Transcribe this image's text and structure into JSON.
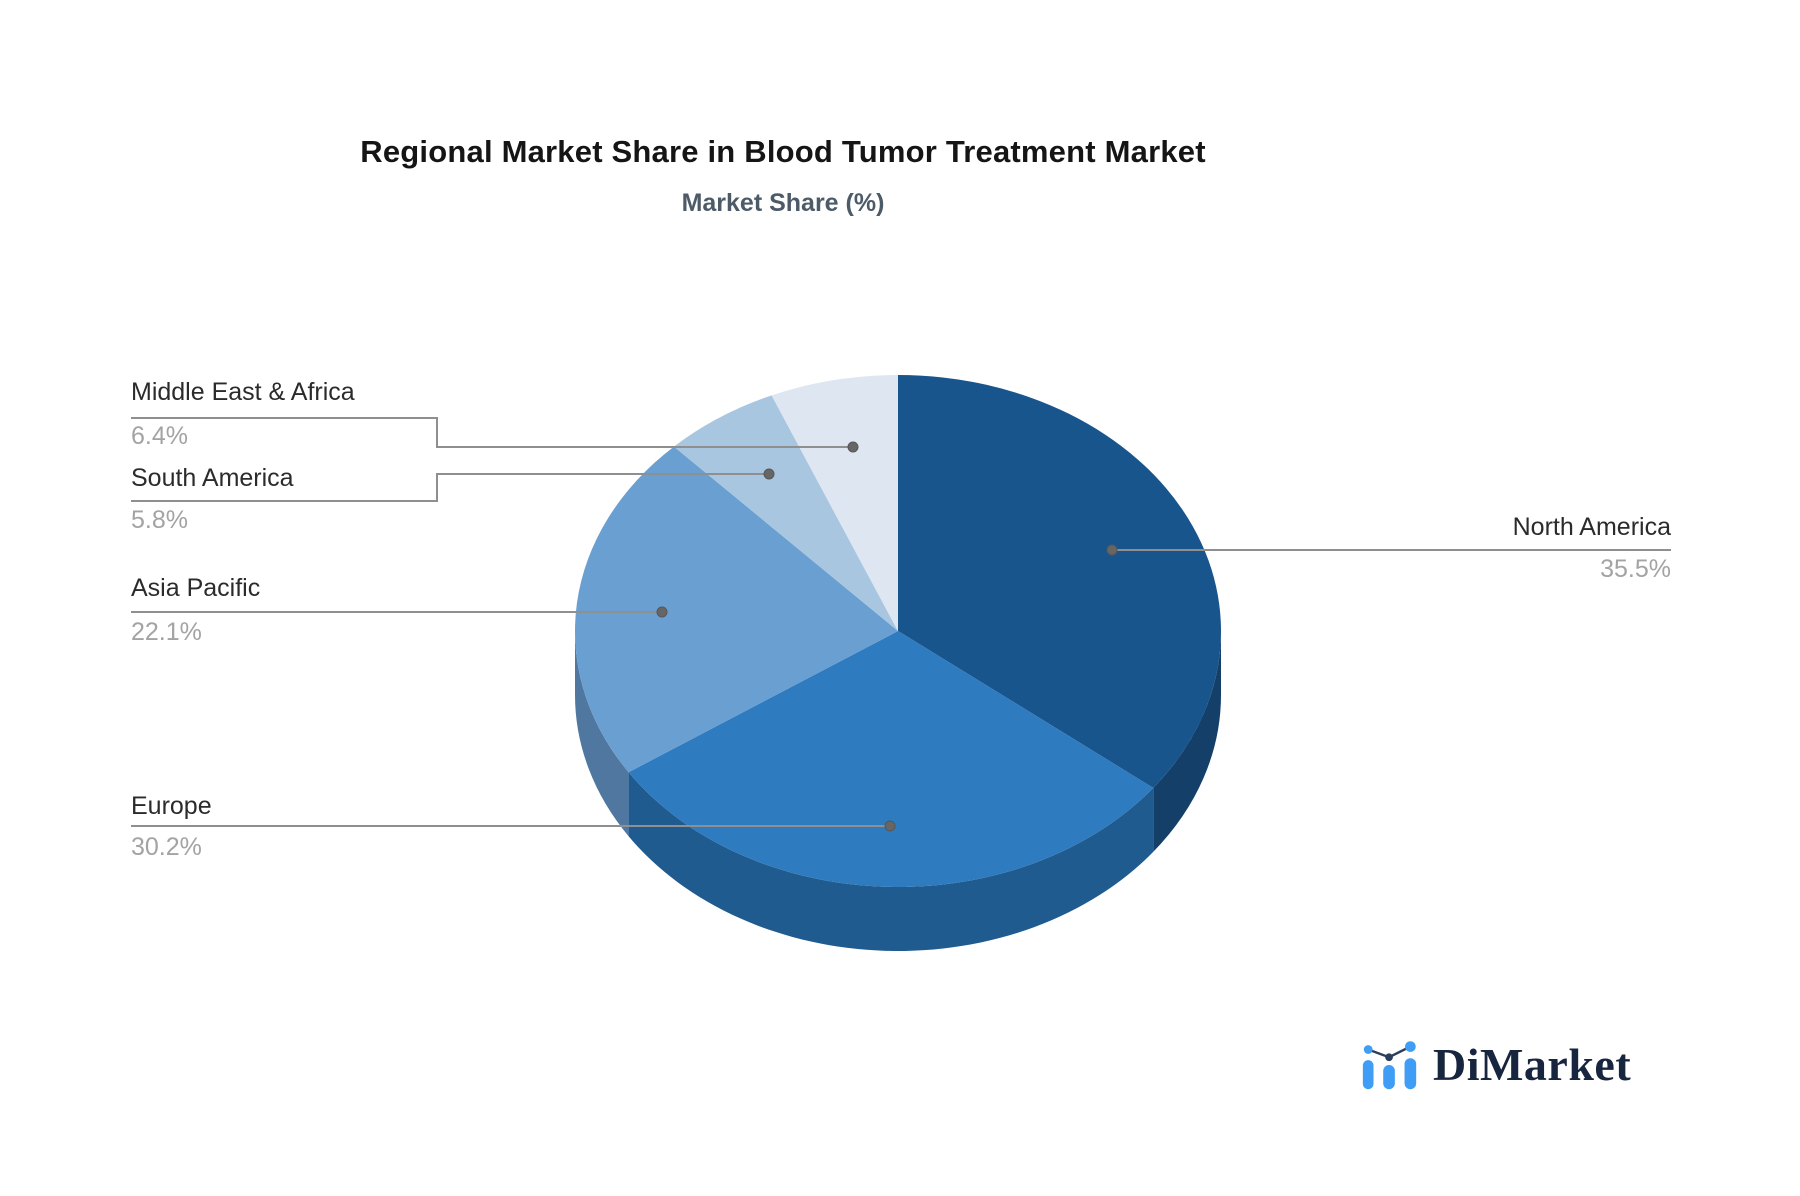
{
  "page": {
    "background": "#ffffff"
  },
  "header": {
    "title": "Regional Market Share in Blood Tumor Treatment Market",
    "subtitle": "Market Share (%)"
  },
  "brand": {
    "name": "DiMarket",
    "icon": "bar-line-chart-icon",
    "wordmark_color": "#17263e",
    "icon_bar_color": "#3f9df5",
    "icon_accent_color": "#2b3f5c"
  },
  "chart_data": {
    "type": "pie",
    "style": "3d",
    "title": "Regional Market Share in Blood Tumor Treatment Market",
    "subtitle": "Market Share (%)",
    "unit": "%",
    "direction": "clockwise",
    "start_angle_deg": 0,
    "legend_position": "none",
    "label_text_color": "#2b2b2b",
    "value_text_color": "#a3a3a3",
    "leader_line_color": "#8f8f8f",
    "leader_dot_color": "#666666",
    "slices": [
      {
        "label": "North America",
        "value": 35.5,
        "display": "35.5%",
        "color": "#19558d",
        "side_color": "#133f69"
      },
      {
        "label": "Europe",
        "value": 30.2,
        "display": "30.2%",
        "color": "#2e7bbf",
        "side_color": "#205b90"
      },
      {
        "label": "Asia Pacific",
        "value": 22.1,
        "display": "22.1%",
        "color": "#6a9fd2",
        "side_color": "#4f77a0"
      },
      {
        "label": "South America",
        "value": 5.8,
        "display": "5.8%",
        "color": "#a9c6e1",
        "side_color": "#7e9cbd"
      },
      {
        "label": "Middle East & Africa",
        "value": 6.4,
        "display": "6.4%",
        "color": "#dde6f1",
        "side_color": "#b0bed0"
      }
    ]
  }
}
